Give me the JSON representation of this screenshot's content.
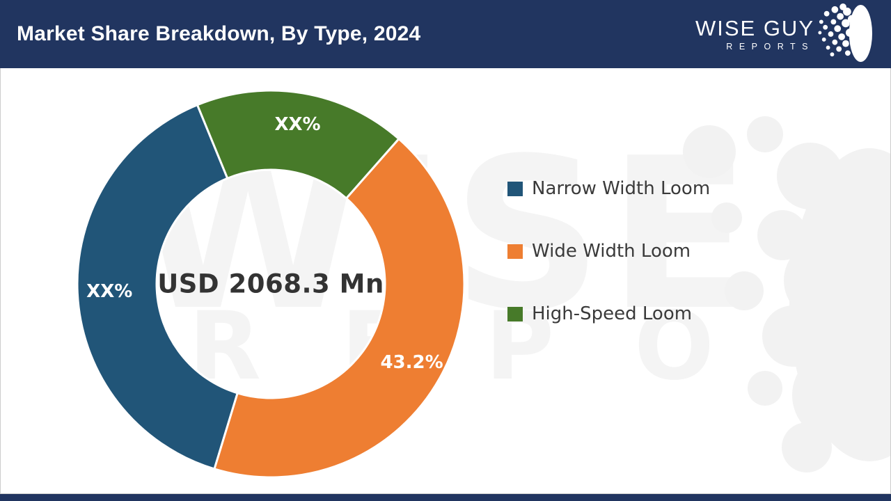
{
  "header": {
    "title": "Market Share Breakdown, By Type, 2024",
    "brand": {
      "line1": "WISE GUY",
      "line2": "REPORTS"
    }
  },
  "watermark": {
    "line1": "WISE GUY",
    "line2": "REPORTS"
  },
  "chart_data": {
    "type": "donut",
    "title": "Market Share Breakdown, By Type, 2024",
    "center_label": "USD 2068.3 Mn",
    "unit": "percent of market share",
    "start_angle_deg": 112.3,
    "direction": "counterclockwise",
    "hole_ratio": 0.59,
    "legend_position": "right",
    "segments": [
      {
        "name": "Narrow Width Loom",
        "label": "XX%",
        "value_pct": 39.1,
        "color": "#215578"
      },
      {
        "name": "Wide Width Loom",
        "label": "43.2%",
        "value_pct": 43.2,
        "color": "#EE7E32"
      },
      {
        "name": "High-Speed Loom",
        "label": "XX%",
        "value_pct": 17.7,
        "color": "#477A29"
      }
    ]
  },
  "colors": {
    "header_bg": "#213560",
    "footer_bg": "#213560",
    "page_bg": "#ffffff",
    "center_text": "#333333",
    "legend_text": "#3a3a3a",
    "slice_label_text": "#ffffff",
    "watermark": "#f4f4f4",
    "content_border": "#cccccc"
  }
}
